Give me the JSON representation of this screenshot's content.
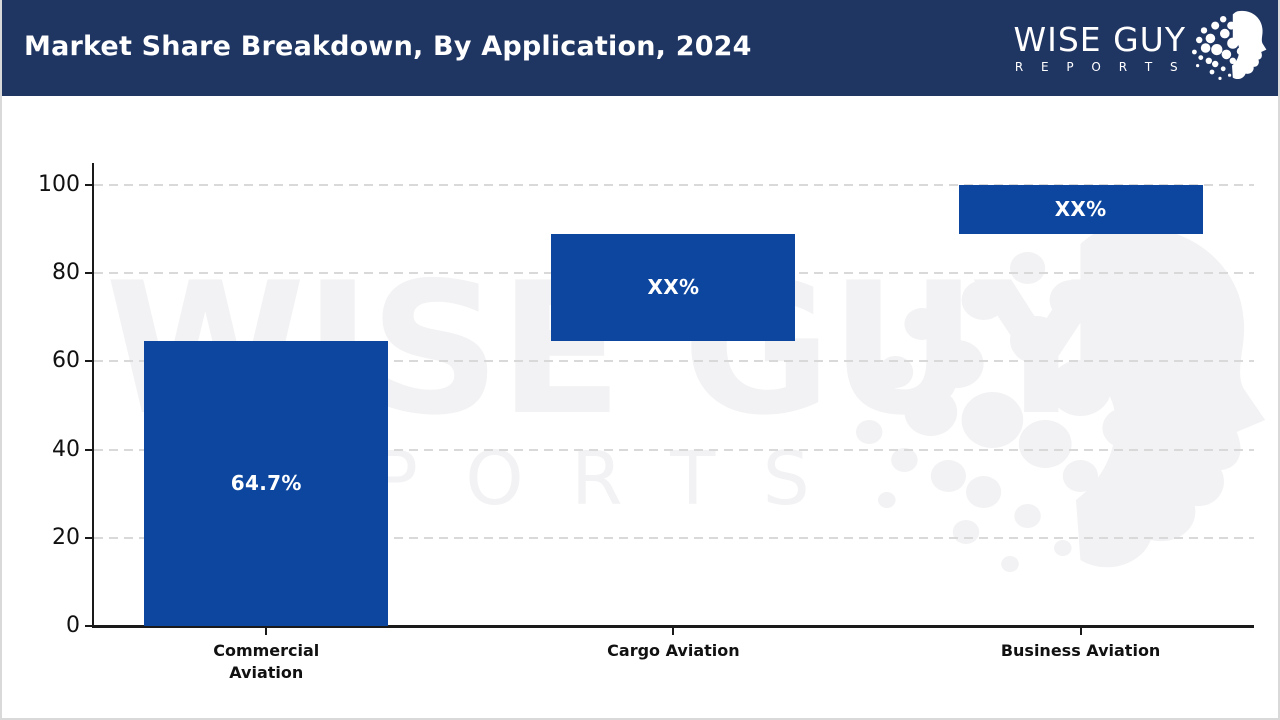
{
  "header": {
    "title": "Market Share Breakdown, By Application, 2024",
    "logo": {
      "name": "WISE GUY",
      "tagline": "R E P O R T S"
    }
  },
  "watermark": {
    "name": "WISE GUY",
    "tagline": "R E P O R T S"
  },
  "chart_data": {
    "type": "bar",
    "variant": "stepped-waterfall",
    "title": "Market Share Breakdown, By Application, 2024",
    "categories": [
      "Commercial\nAviation",
      "Cargo Aviation",
      "Business Aviation"
    ],
    "series": [
      {
        "name": "Commercial Aviation",
        "start": 0,
        "end": 64.7,
        "label": "64.7%"
      },
      {
        "name": "Cargo Aviation",
        "start": 64.7,
        "end": 89,
        "label": "XX%"
      },
      {
        "name": "Business Aviation",
        "start": 89,
        "end": 100,
        "label": "XX%"
      }
    ],
    "xlabel": "",
    "ylabel": "",
    "ylim": [
      0,
      100
    ],
    "yticks": [
      0,
      20,
      40,
      60,
      80,
      100
    ],
    "grid": {
      "horizontal": true,
      "style": "dashed"
    },
    "legend": "none"
  },
  "colors": {
    "header_bg": "#1f3562",
    "header_text": "#ffffff",
    "bar": "#0c469e",
    "bar_label": "#ffffff",
    "axis": "#1a1a1a",
    "gridline": "#d9d9d9",
    "tick_label": "#111111",
    "watermark": "#f2f2f4",
    "page_border": "#d9d9d9",
    "body_bg": "#ffffff"
  }
}
